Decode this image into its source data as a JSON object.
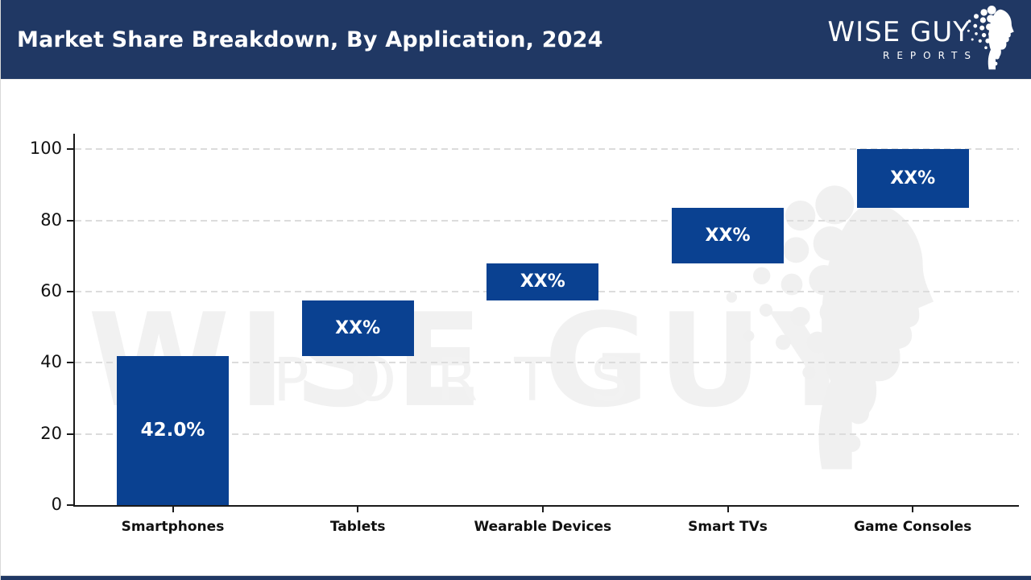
{
  "header": {
    "title": "Market Share Breakdown, By Application, 2024",
    "logo": {
      "line1": "WISE GUY",
      "line2": "REPORTS"
    }
  },
  "watermark": {
    "line1": "WISE GUY",
    "line2": "REPORTS"
  },
  "colors": {
    "header_bg": "#203864",
    "bar_blue": "#0a4191",
    "gridline": "#dcdcdc",
    "axis": "#1a1a1a",
    "bar_label_text": "#ffffff",
    "watermark": "#f0f0f0"
  },
  "chart_data": {
    "type": "bar",
    "subtype": "waterfall",
    "title": "Market Share Breakdown, By Application, 2024",
    "categories": [
      "Smartphones",
      "Tablets",
      "Wearable Devices",
      "Smart TVs",
      "Game Consoles"
    ],
    "bars": [
      {
        "category": "Smartphones",
        "start": 0,
        "end": 42,
        "label": "42.0%"
      },
      {
        "category": "Tablets",
        "start": 42,
        "end": 57.5,
        "label": "XX%"
      },
      {
        "category": "Wearable Devices",
        "start": 57.5,
        "end": 68,
        "label": "XX%"
      },
      {
        "category": "Smart TVs",
        "start": 68,
        "end": 83.5,
        "label": "XX%"
      },
      {
        "category": "Game Consoles",
        "start": 83.5,
        "end": 100,
        "label": "XX%"
      }
    ],
    "y_ticks": [
      0,
      20,
      40,
      60,
      80,
      100
    ],
    "ylim": [
      0,
      104.4
    ],
    "xlabel": "",
    "ylabel": "",
    "grid": "horizontal-dashed",
    "legend": "none"
  }
}
